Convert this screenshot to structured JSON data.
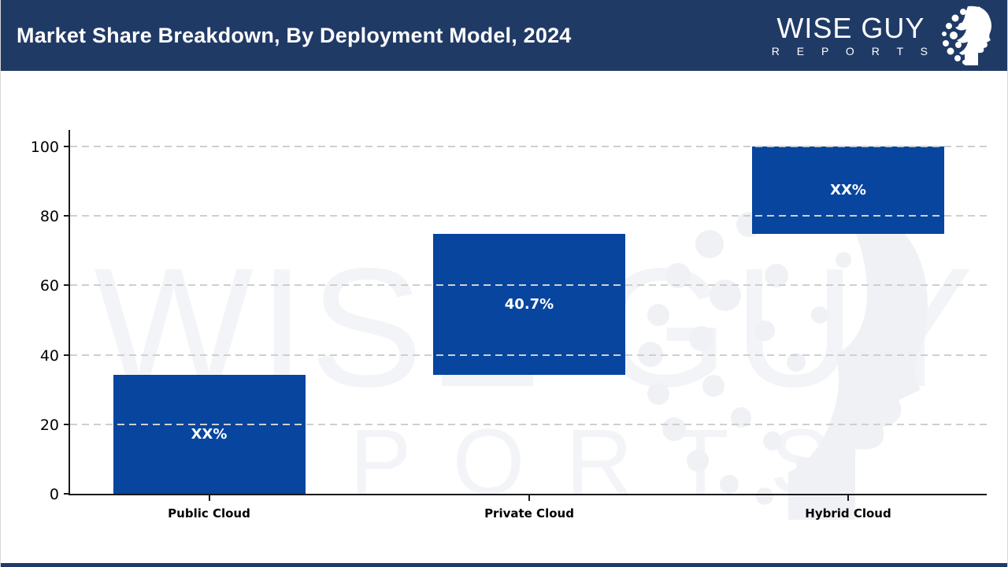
{
  "header": {
    "title": "Market Share Breakdown, By Deployment Model, 2024",
    "logo": {
      "line1": "WISE GUY",
      "line2": "REPORTS"
    }
  },
  "watermark": {
    "line1": "WISE GUY",
    "line2": "REPORTS"
  },
  "colors": {
    "header_bg": "#203a66",
    "bar": "#07459e",
    "grid": "#cfcfcf",
    "axis": "#1a1a1a",
    "bar_label": "#ffffff",
    "watermark": "#f3f4f7"
  },
  "chart_data": {
    "type": "bar",
    "variant": "stacked-waterfall",
    "title": "Market Share Breakdown, By Deployment Model, 2024",
    "categories": [
      "Public Cloud",
      "Private Cloud",
      "Hybrid Cloud"
    ],
    "segments": [
      {
        "category": "Public Cloud",
        "start": 0,
        "end": 34.2,
        "value": 34.2,
        "label": "XX%"
      },
      {
        "category": "Private Cloud",
        "start": 34.2,
        "end": 74.9,
        "value": 40.7,
        "label": "40.7%"
      },
      {
        "category": "Hybrid Cloud",
        "start": 74.9,
        "end": 100,
        "value": 25.1,
        "label": "XX%"
      }
    ],
    "yticks": [
      0,
      20,
      40,
      60,
      80,
      100
    ],
    "ylim": [
      0,
      104.8
    ],
    "xlabel": "",
    "ylabel": "",
    "grid": "horizontal-dashed",
    "grid_above_bars": true,
    "legend": "none",
    "bar_color": "#07459e",
    "label_color": "#ffffff"
  }
}
